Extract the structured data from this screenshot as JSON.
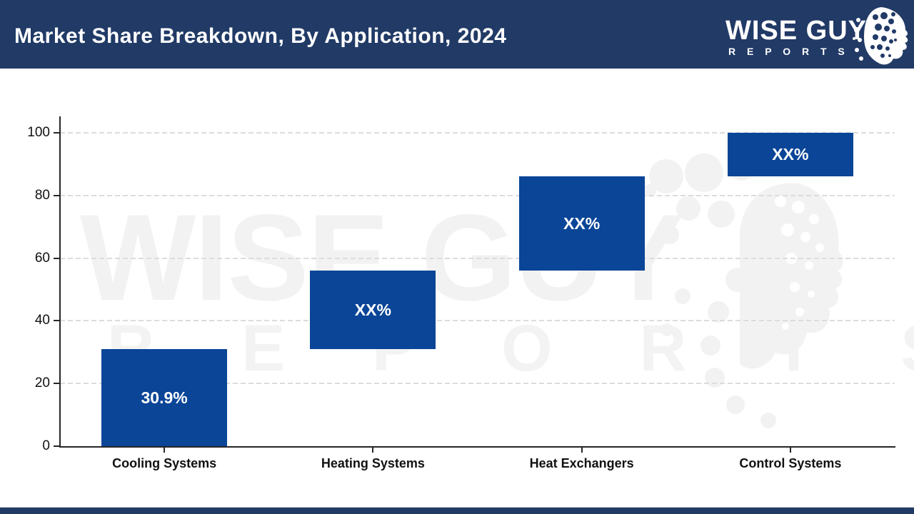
{
  "header": {
    "title": "Market Share Breakdown, By Application, 2024",
    "logo": {
      "line1": "WISE GUY",
      "line2": "R E P O R T S"
    }
  },
  "watermark": {
    "line1": "WISE GUY",
    "line2": "R E P O R T S"
  },
  "colors": {
    "header_bg": "#213a66",
    "footer_bg": "#213a66",
    "bar": "#0a4597",
    "bar_label": "#ffffff",
    "axis": "#262626",
    "grid": "#dcdcdc",
    "watermark": "#f2f2f2",
    "title_text": "#ffffff"
  },
  "chart_data": {
    "type": "bar",
    "subtype": "waterfall",
    "title": "Market Share Breakdown, By Application, 2024",
    "categories": [
      "Cooling Systems",
      "Heating Systems",
      "Heat Exchangers",
      "Control Systems"
    ],
    "segments": [
      {
        "category": "Cooling Systems",
        "start": 0,
        "end": 30.9,
        "label": "30.9%"
      },
      {
        "category": "Heating Systems",
        "start": 30.9,
        "end": 56,
        "label": "XX%"
      },
      {
        "category": "Heat Exchangers",
        "start": 56,
        "end": 86,
        "label": "XX%"
      },
      {
        "category": "Control Systems",
        "start": 86,
        "end": 100,
        "label": "XX%"
      }
    ],
    "ylim": [
      0,
      105
    ],
    "yticks": [
      0,
      20,
      40,
      60,
      80,
      100
    ],
    "xlabel": "",
    "ylabel": "",
    "grid": "horizontal-dashed",
    "legend": "none"
  }
}
